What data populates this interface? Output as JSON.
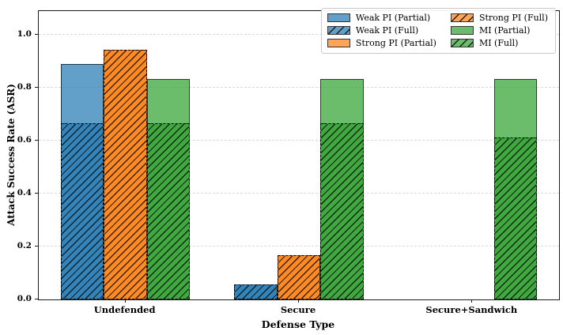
{
  "chart_data": {
    "type": "bar",
    "title": "",
    "xlabel": "Defense Type",
    "ylabel": "Attack Success Rate (ASR)",
    "categories": [
      "Undefended",
      "Secure",
      "Secure+Sandwich"
    ],
    "categories_axis": "x",
    "ylim": [
      0,
      1.09
    ],
    "yticks": [
      "0.0",
      "0.2",
      "0.4",
      "0.6",
      "0.8",
      "1.0"
    ],
    "ytick_values": [
      0.0,
      0.2,
      0.4,
      0.6,
      0.8,
      1.0
    ],
    "grid": {
      "axis": "y",
      "style": "dashed",
      "color": "#d9d9d9",
      "behind_bars": true
    },
    "bar_style": "overlaid: for each attack color, the hatched (Full) bar is drawn over the solid (Partial) bar at the same x position",
    "hatch_pattern": "//",
    "series": [
      {
        "name": "Weak PI (Partial)",
        "slot": "weak_pi",
        "style": "solid",
        "color": "#1f77b4",
        "values": [
          0.889,
          0.056,
          0
        ]
      },
      {
        "name": "Weak PI (Full)",
        "slot": "weak_pi",
        "style": "hatched",
        "color": "#1f77b4",
        "values": [
          0.667,
          0.056,
          0
        ]
      },
      {
        "name": "Strong PI (Partial)",
        "slot": "strong_pi",
        "style": "solid",
        "color": "#ff7f0e",
        "values": [
          0.944,
          0.167,
          0
        ]
      },
      {
        "name": "Strong PI (Full)",
        "slot": "strong_pi",
        "style": "hatched",
        "color": "#ff7f0e",
        "values": [
          0.944,
          0.167,
          0
        ]
      },
      {
        "name": "MI (Partial)",
        "slot": "mi",
        "style": "solid",
        "color": "#2ca02c",
        "values": [
          0.833,
          0.833,
          0.833
        ]
      },
      {
        "name": "MI (Full)",
        "slot": "mi",
        "style": "hatched",
        "color": "#2ca02c",
        "values": [
          0.667,
          0.667,
          0.611
        ]
      }
    ],
    "legend": {
      "position": "upper right",
      "columns": 2,
      "fill_order": "column-major",
      "entries": [
        "Weak PI (Partial)",
        "Weak PI (Full)",
        "Strong PI (Partial)",
        "Strong PI (Full)",
        "MI (Partial)",
        "MI (Full)"
      ]
    },
    "colors": {
      "blue": "#1f77b4",
      "orange": "#ff7f0e",
      "green": "#2ca02c",
      "bar_alpha": 0.7,
      "hatch_line": "#111111",
      "grid_line": "#d9d9d9",
      "axis_spine": "#1a1a1a",
      "legend_border": "#c9c9c9"
    }
  }
}
